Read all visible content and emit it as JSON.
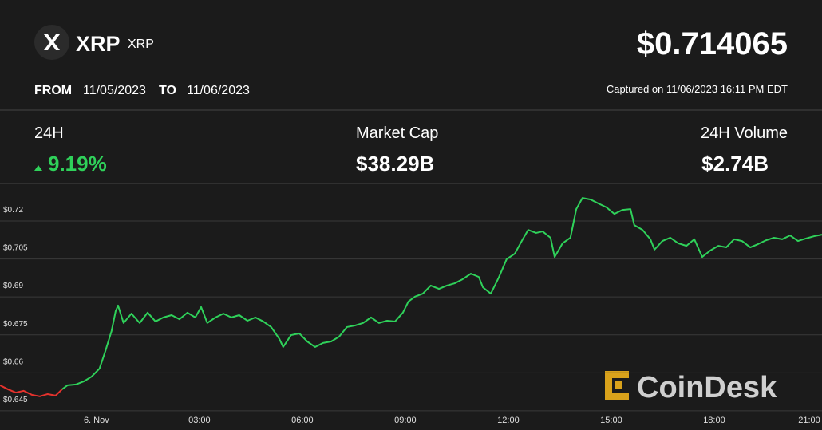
{
  "header": {
    "name": "XRP",
    "symbol": "XRP",
    "price": "$0.714065",
    "from_label": "FROM",
    "from_date": "11/05/2023",
    "to_label": "TO",
    "to_date": "11/06/2023",
    "captured": "Captured on 11/06/2023 16:11 PM EDT"
  },
  "stats": [
    {
      "label": "24H",
      "value": "9.19%"
    },
    {
      "label": "Market Cap",
      "value": "$38.29B"
    },
    {
      "label": "24H Volume",
      "value": "$2.74B"
    }
  ],
  "watermark": "CoinDesk",
  "chart_data": {
    "type": "line",
    "xlim": [
      -2.81,
      21.14
    ],
    "xticks": [
      {
        "value": 0,
        "label": "6. Nov"
      },
      {
        "value": 3,
        "label": "03:00"
      },
      {
        "value": 6,
        "label": "06:00"
      },
      {
        "value": 9,
        "label": "09:00"
      },
      {
        "value": 12,
        "label": "12:00"
      },
      {
        "value": 15,
        "label": "15:00"
      },
      {
        "value": 18,
        "label": "18:00"
      },
      {
        "value": 21,
        "label": "21:00"
      }
    ],
    "ylim": [
      0.6374,
      0.7342
    ],
    "yticks": [
      {
        "value": 0.645,
        "label": "$0.645"
      },
      {
        "value": 0.66,
        "label": "$0.66"
      },
      {
        "value": 0.675,
        "label": "$0.675"
      },
      {
        "value": 0.69,
        "label": "$0.69"
      },
      {
        "value": 0.705,
        "label": "$0.705"
      },
      {
        "value": 0.72,
        "label": "$0.72"
      }
    ],
    "grid": true,
    "series": [
      {
        "color": "#e5322d",
        "x": [
          -2.81,
          -2.58,
          -2.35,
          -2.12,
          -1.88,
          -1.65,
          -1.42,
          -1.19,
          -1.0
        ],
        "values": [
          0.6551,
          0.6535,
          0.6522,
          0.6529,
          0.6513,
          0.6507,
          0.6516,
          0.651,
          0.6535
        ]
      },
      {
        "color": "#2fd15a",
        "x": [
          -1.0,
          -0.84,
          -0.6,
          -0.37,
          -0.14,
          0.09,
          0.26,
          0.44,
          0.56,
          0.63,
          0.79,
          1.02,
          1.26,
          1.49,
          1.72,
          1.95,
          2.19,
          2.42,
          2.65,
          2.88,
          3.05,
          3.23,
          3.47,
          3.7,
          3.93,
          4.16,
          4.4,
          4.63,
          4.86,
          5.09,
          5.33,
          5.44,
          5.67,
          5.91,
          6.14,
          6.37,
          6.6,
          6.84,
          7.07,
          7.3,
          7.53,
          7.77,
          8.0,
          8.23,
          8.47,
          8.7,
          8.93,
          9.09,
          9.28,
          9.51,
          9.74,
          9.98,
          10.21,
          10.44,
          10.67,
          10.91,
          11.14,
          11.26,
          11.49,
          11.72,
          11.95,
          12.19,
          12.42,
          12.58,
          12.81,
          13.0,
          13.23,
          13.35,
          13.58,
          13.81,
          13.98,
          14.16,
          14.4,
          14.63,
          14.86,
          15.09,
          15.33,
          15.56,
          15.67,
          15.91,
          16.14,
          16.26,
          16.49,
          16.72,
          16.95,
          17.19,
          17.42,
          17.65,
          17.88,
          18.12,
          18.35,
          18.58,
          18.81,
          19.05,
          19.28,
          19.51,
          19.74,
          19.98,
          20.21,
          20.44,
          20.67,
          20.91,
          21.14
        ],
        "values": [
          0.6535,
          0.6551,
          0.6554,
          0.6566,
          0.6585,
          0.6617,
          0.6686,
          0.6765,
          0.6844,
          0.6866,
          0.6797,
          0.6834,
          0.6797,
          0.6838,
          0.6803,
          0.6819,
          0.6828,
          0.6812,
          0.6838,
          0.6819,
          0.686,
          0.6797,
          0.6819,
          0.6834,
          0.6819,
          0.6828,
          0.6806,
          0.6819,
          0.6803,
          0.6781,
          0.6734,
          0.6702,
          0.6749,
          0.6756,
          0.6724,
          0.6702,
          0.6718,
          0.6724,
          0.6743,
          0.6781,
          0.6787,
          0.6797,
          0.6819,
          0.6797,
          0.6806,
          0.6803,
          0.6838,
          0.6882,
          0.6901,
          0.6913,
          0.6945,
          0.6932,
          0.6945,
          0.6954,
          0.697,
          0.6992,
          0.6979,
          0.6938,
          0.6913,
          0.6976,
          0.7049,
          0.7071,
          0.7128,
          0.7165,
          0.7153,
          0.7159,
          0.7134,
          0.7058,
          0.7112,
          0.7134,
          0.7247,
          0.7291,
          0.7285,
          0.7269,
          0.7254,
          0.7228,
          0.7244,
          0.7247,
          0.7184,
          0.7165,
          0.7128,
          0.7087,
          0.7121,
          0.7134,
          0.7112,
          0.7102,
          0.7128,
          0.7058,
          0.7083,
          0.7102,
          0.7096,
          0.7128,
          0.7121,
          0.7096,
          0.7109,
          0.7124,
          0.7134,
          0.7128,
          0.7143,
          0.7121,
          0.7131,
          0.714,
          0.7146
        ]
      }
    ]
  }
}
